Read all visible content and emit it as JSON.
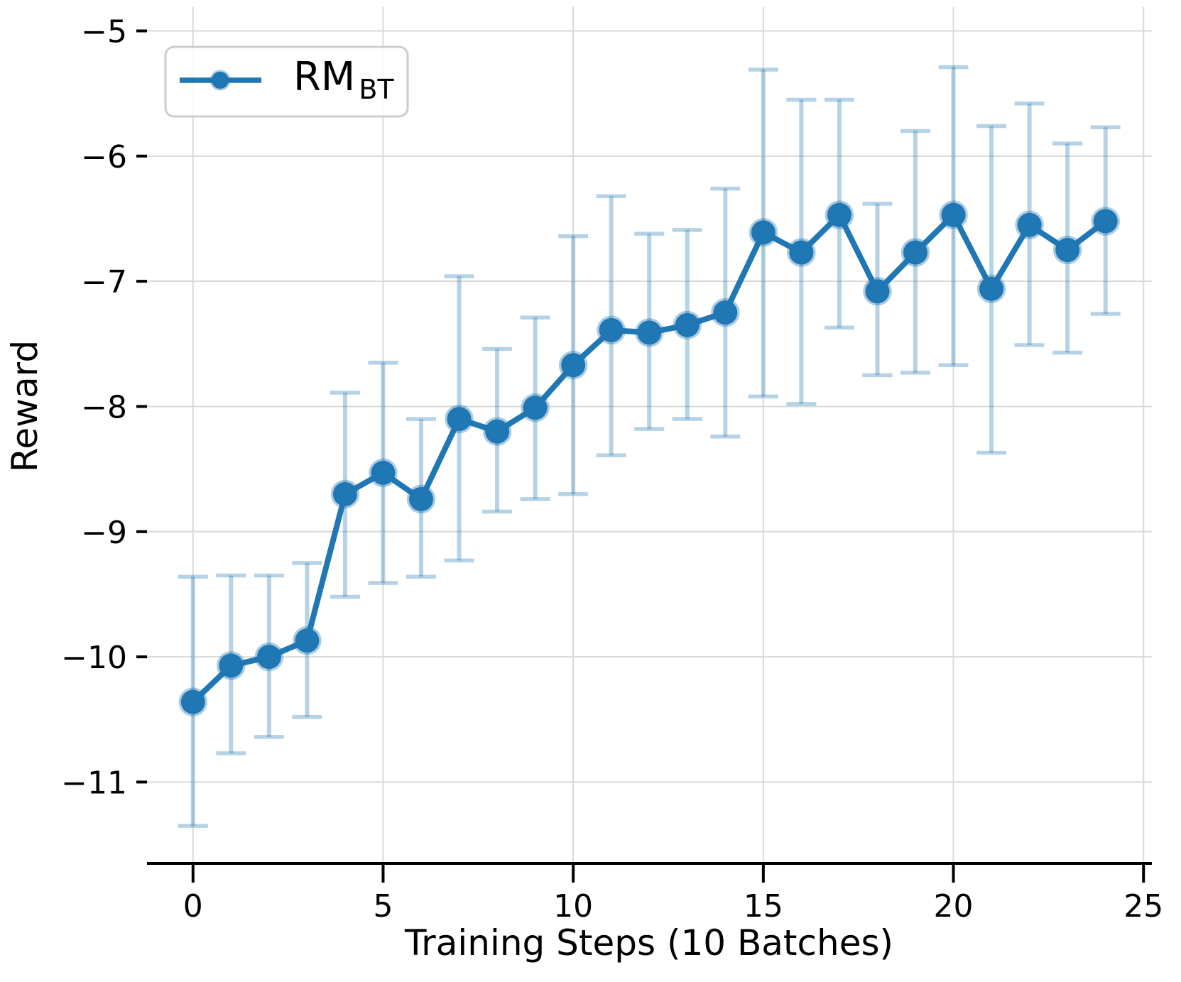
{
  "figure": {
    "kind": "matplotlib-style line chart with error bars"
  },
  "colors": {
    "line": "#1f77b4",
    "marker_fill": "#1f77b4",
    "marker_halo": "rgba(31,119,180,0.38)",
    "error_bar": "rgba(31,119,180,0.33)",
    "grid": "#d9d9d9",
    "spine": "#000000",
    "tick": "#000000",
    "legend_border": "#cdcdcd",
    "legend_fill": "rgba(255,255,255,0.8)"
  },
  "chart_data": {
    "type": "line",
    "title": "",
    "xlabel": "Training Steps (10 Batches)",
    "ylabel": "Reward",
    "grid": true,
    "legend": {
      "position": "upper left",
      "entries": [
        {
          "label": "RM",
          "label_subscript": "BT"
        }
      ]
    },
    "xlim": [
      -1.21,
      25.22
    ],
    "ylim": [
      -11.65,
      -4.81
    ],
    "x_ticks": [
      0,
      5,
      10,
      15,
      20,
      25
    ],
    "y_ticks": [
      -5,
      -6,
      -7,
      -8,
      -9,
      -10,
      -11
    ],
    "series": [
      {
        "name": "RM_BT",
        "marker": "circle",
        "x": [
          0,
          1,
          2,
          3,
          4,
          5,
          6,
          7,
          8,
          9,
          10,
          11,
          12,
          13,
          14,
          15,
          16,
          17,
          18,
          19,
          20,
          21,
          22,
          23,
          24
        ],
        "y": [
          -10.36,
          -10.07,
          -10.0,
          -9.87,
          -8.7,
          -8.53,
          -8.74,
          -8.1,
          -8.2,
          -8.01,
          -7.67,
          -7.39,
          -7.41,
          -7.35,
          -7.25,
          -6.61,
          -6.77,
          -6.47,
          -7.08,
          -6.77,
          -6.47,
          -7.06,
          -6.55,
          -6.75,
          -6.52
        ],
        "err_low": [
          -11.35,
          -10.77,
          -10.64,
          -10.48,
          -9.52,
          -9.41,
          -9.36,
          -9.23,
          -8.84,
          -8.74,
          -8.7,
          -8.39,
          -8.18,
          -8.1,
          -8.24,
          -7.92,
          -7.98,
          -7.37,
          -7.75,
          -7.73,
          -7.67,
          -8.37,
          -7.51,
          -7.57,
          -7.26
        ],
        "err_high": [
          -9.36,
          -9.35,
          -9.35,
          -9.25,
          -7.89,
          -7.65,
          -8.1,
          -6.96,
          -7.54,
          -7.29,
          -6.64,
          -6.32,
          -6.62,
          -6.59,
          -6.26,
          -5.31,
          -5.55,
          -5.55,
          -6.38,
          -5.8,
          -5.29,
          -5.76,
          -5.58,
          -5.9,
          -5.77
        ]
      }
    ]
  }
}
